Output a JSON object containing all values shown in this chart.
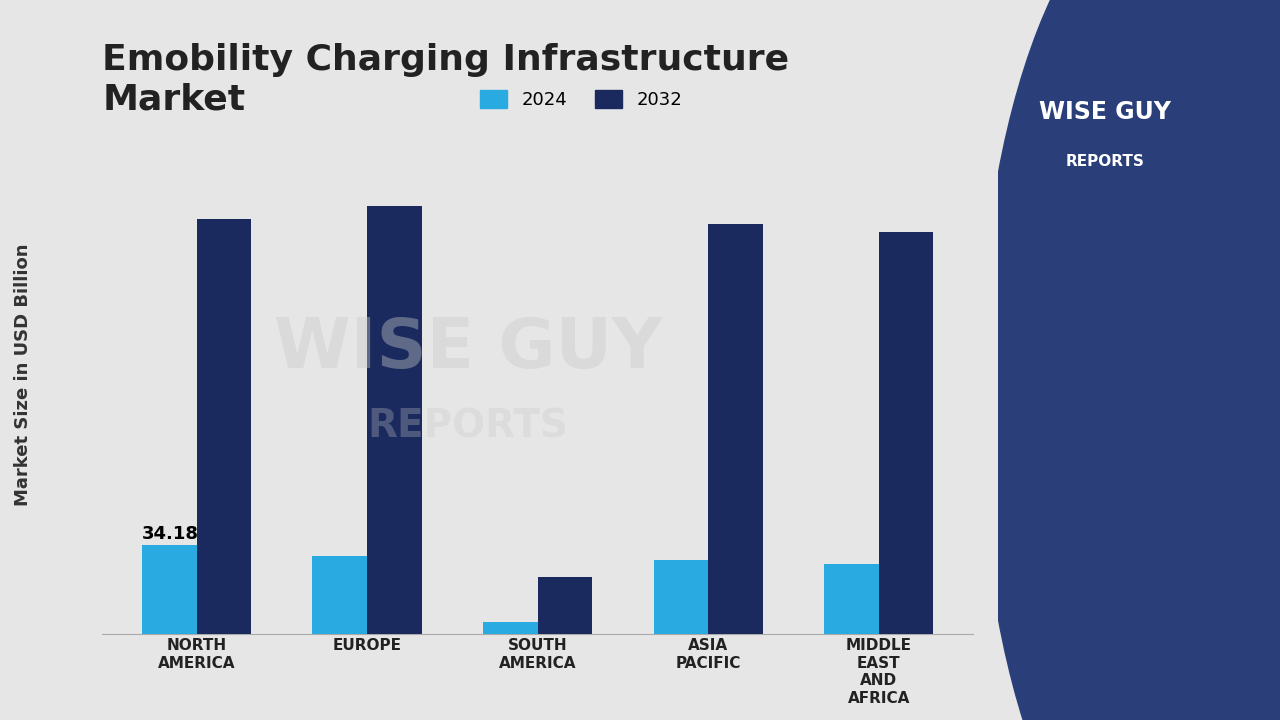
{
  "title": "Emobility Charging Infrastructure\nMarket",
  "ylabel": "Market Size in USD Billion",
  "background_color": "#e6e6e6",
  "right_panel_color": "#1a2a5e",
  "categories": [
    "NORTH\nAMERICA",
    "EUROPE",
    "SOUTH\nAMERICA",
    "ASIA\nPACIFIC",
    "MIDDLE\nEAST\nAND\nAFRICA"
  ],
  "values_2024": [
    34.18,
    30.0,
    4.5,
    28.5,
    27.0
  ],
  "values_2032": [
    160.0,
    165.0,
    22.0,
    158.0,
    155.0
  ],
  "color_2024": "#29abe2",
  "color_2032": "#1a2a5e",
  "annotation_value": "34.18",
  "legend_2024": "2024",
  "legend_2032": "2032",
  "ylim": [
    0,
    200
  ],
  "title_fontsize": 26,
  "ylabel_fontsize": 13,
  "tick_fontsize": 11,
  "legend_fontsize": 13,
  "annotation_fontsize": 13,
  "bar_width": 0.32
}
